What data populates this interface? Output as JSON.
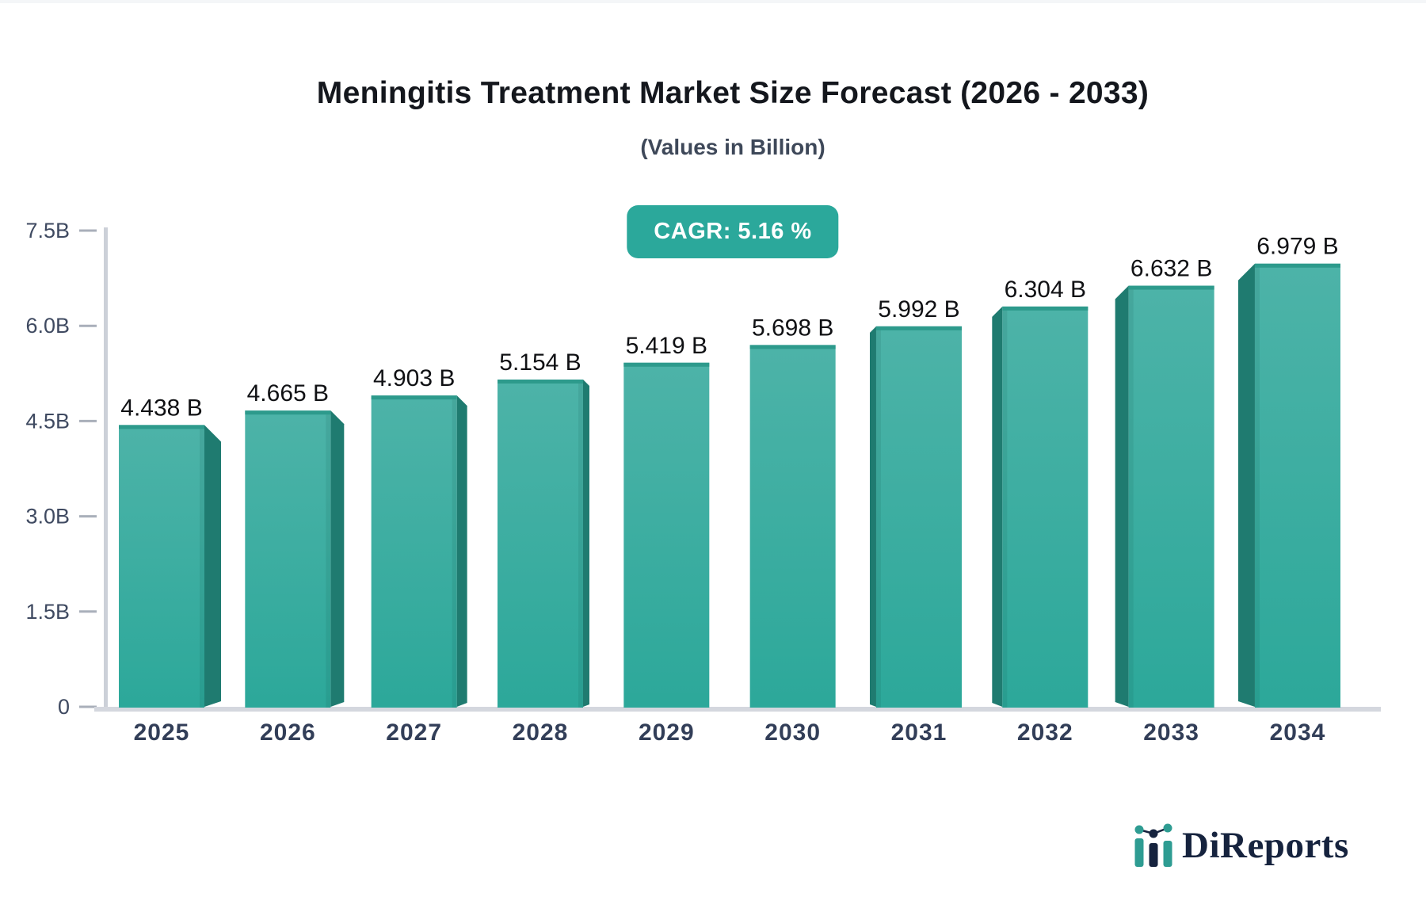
{
  "header": {
    "title": "Meningitis Treatment Market Size Forecast (2026 - 2033)",
    "subtitle": "(Values in Billion)",
    "cagr_badge": "CAGR: 5.16 %"
  },
  "chart_data": {
    "type": "bar",
    "title": "Meningitis Treatment Market Size Forecast (2026 - 2033)",
    "subtitle": "(Values in Billion)",
    "cagr_percent": 5.16,
    "categories": [
      "2025",
      "2026",
      "2027",
      "2028",
      "2029",
      "2030",
      "2031",
      "2032",
      "2033",
      "2034"
    ],
    "values": [
      4.438,
      4.665,
      4.903,
      5.154,
      5.419,
      5.698,
      5.992,
      6.304,
      6.632,
      6.979
    ],
    "value_labels": [
      "4.438 B",
      "4.665 B",
      "4.903 B",
      "5.154 B",
      "5.419 B",
      "5.698 B",
      "5.992 B",
      "6.304 B",
      "6.632 B",
      "6.979 B"
    ],
    "xlabel": "",
    "ylabel": "",
    "ylim": [
      0,
      7.5
    ],
    "y_ticks": [
      {
        "value": 0,
        "label": "0"
      },
      {
        "value": 1.5,
        "label": "1.5B"
      },
      {
        "value": 3.0,
        "label": "3.0B"
      },
      {
        "value": 4.5,
        "label": "4.5B"
      },
      {
        "value": 6.0,
        "label": "6.0B"
      },
      {
        "value": 7.5,
        "label": "7.5B"
      }
    ],
    "grid": false,
    "legend": "none",
    "bar_style": "3d-extruded-toward-center",
    "colors": {
      "bar_face_top": "#4db3a8",
      "bar_face_bottom": "#2ca89a",
      "bar_top_edge": "#2d9a8c",
      "bar_side": "#1f7b70",
      "axis_line": "#ccd0d8",
      "baseline": "#d4d7de",
      "tick_dash": "#a9afba",
      "tick_text": "#3f4a61",
      "x_label_text": "#323e58",
      "value_label_text": "#101114",
      "badge_bg": "#2ba89b"
    }
  },
  "logo": {
    "text": "DiReports",
    "navy": "#16233e",
    "teal": "#2e9c92"
  }
}
